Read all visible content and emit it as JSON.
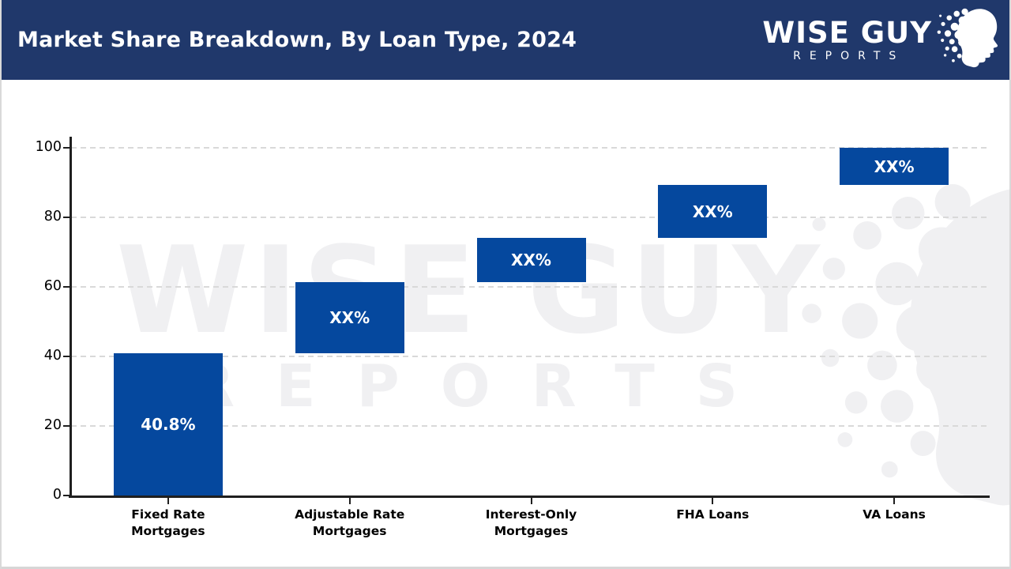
{
  "header": {
    "title": "Market Share Breakdown, By Loan Type, 2024",
    "logo": {
      "wordmark": "WISE GUY",
      "subtitle": "REPORTS"
    }
  },
  "watermark": {
    "wordmark": "WISE GUY",
    "subtitle": "REPORTS"
  },
  "colors": {
    "header_bg": "#20386B",
    "bar_blue": "#05489E",
    "axis": "#1f1f1f",
    "gridline": "#d9d9d9",
    "watermark": "#f0f0f2",
    "title_text": "#ffffff",
    "bar_label_text": "#ffffff"
  },
  "chart_data": {
    "type": "bar",
    "subtype": "waterfall",
    "title": "Market Share Breakdown, By Loan Type, 2024",
    "categories": [
      "Fixed Rate Mortgages",
      "Adjustable Rate Mortgages",
      "Interest-Only Mortgages",
      "FHA Loans",
      "VA Loans"
    ],
    "category_label_lines": [
      [
        "Fixed Rate",
        "Mortgages"
      ],
      [
        "Adjustable Rate",
        "Mortgages"
      ],
      [
        "Interest-Only",
        "Mortgages"
      ],
      [
        "FHA Loans"
      ],
      [
        "VA Loans"
      ]
    ],
    "segments": [
      {
        "category": "Fixed Rate Mortgages",
        "start": 0,
        "end": 40.8,
        "value": 40.8,
        "label": "40.8%"
      },
      {
        "category": "Adjustable Rate Mortgages",
        "start": 40.8,
        "end": 61.3,
        "value": 20.5,
        "label": "XX%"
      },
      {
        "category": "Interest-Only Mortgages",
        "start": 61.3,
        "end": 74.1,
        "value": 12.8,
        "label": "XX%"
      },
      {
        "category": "FHA Loans",
        "start": 74.1,
        "end": 89.3,
        "value": 15.2,
        "label": "XX%"
      },
      {
        "category": "VA Loans",
        "start": 89.3,
        "end": 100,
        "value": 10.7,
        "label": "XX%"
      }
    ],
    "yticks": [
      0,
      20,
      40,
      60,
      80,
      100
    ],
    "ylim": [
      0,
      103
    ],
    "xlabel": "",
    "ylabel": "",
    "grid": {
      "horizontal": true,
      "style": "dashed"
    },
    "legend": null,
    "bar_color": "#05489E",
    "value_labels_inside_bars": true
  }
}
